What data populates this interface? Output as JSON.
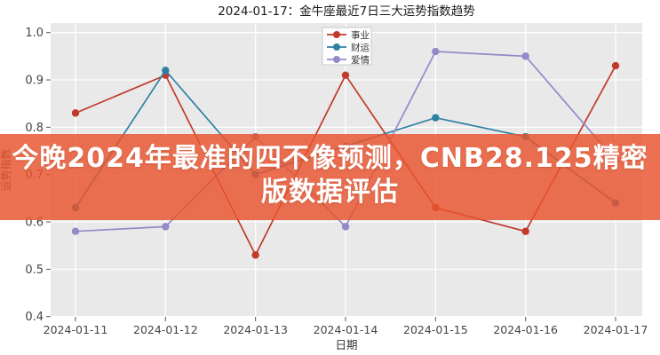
{
  "title": "2024-01-17：金牛座最近7日三大运势指数趋势",
  "banner": {
    "line1": "今晚2024年最准的四不像预测，CNB28.125精密",
    "line2": "版数据评估",
    "bg_color": "#e8542f",
    "text_color": "#ffffff"
  },
  "chart_data": {
    "type": "line",
    "title": "2024-01-17：金牛座最近7日三大运势指数趋势",
    "xlabel": "日期",
    "ylabel": "运势指数",
    "categories": [
      "2024-01-11",
      "2024-01-12",
      "2024-01-13",
      "2024-01-14",
      "2024-01-15",
      "2024-01-16",
      "2024-01-17"
    ],
    "series": [
      {
        "name": "事业",
        "color": "#c13a2c",
        "values": [
          0.83,
          0.91,
          0.53,
          0.91,
          0.63,
          0.58,
          0.93
        ]
      },
      {
        "name": "财运",
        "color": "#2e80a3",
        "values": [
          0.63,
          0.92,
          0.7,
          0.76,
          0.82,
          0.78,
          0.64
        ]
      },
      {
        "name": "爱情",
        "color": "#9489c9",
        "values": [
          0.58,
          0.59,
          0.78,
          0.59,
          0.96,
          0.95,
          0.73
        ]
      }
    ],
    "ylim": [
      0.4,
      1.0
    ],
    "yticks": [
      1.0,
      0.9,
      0.8,
      0.7,
      0.6,
      0.5,
      0.4
    ],
    "grid": true,
    "grid_color": "#ffffff",
    "plot_bg": "#e9e9e9",
    "tick_label_color": "#454545",
    "axis_label_color": "#333333",
    "title_color": "#1a1a1a",
    "legend_position": "top-center"
  }
}
